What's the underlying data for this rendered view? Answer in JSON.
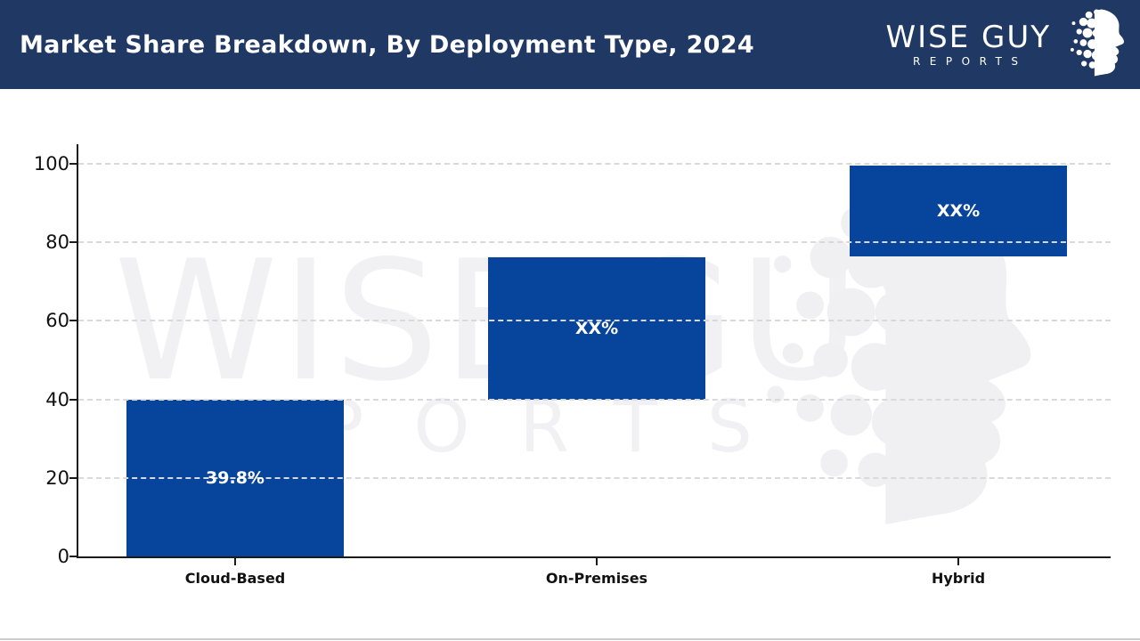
{
  "header": {
    "title": "Market Share Breakdown, By Deployment Type, 2024",
    "logo": {
      "line1": "WISE GUY",
      "line2": "REPORTS"
    }
  },
  "watermark": {
    "line1": "WISE GUY",
    "line2": "REPORTS"
  },
  "chart_data": {
    "type": "bar",
    "subtype": "floating-segment-waterfall",
    "title": "Market Share Breakdown, By Deployment Type, 2024",
    "categories": [
      "Cloud-Based",
      "On-Premises",
      "Hybrid"
    ],
    "segments": [
      {
        "category": "Cloud-Based",
        "start": 0,
        "end": 39.8,
        "label": "39.8%"
      },
      {
        "category": "On-Premises",
        "start": 40,
        "end": 76.3,
        "label": "XX%"
      },
      {
        "category": "Hybrid",
        "start": 76.5,
        "end": 99.6,
        "label": "XX%"
      }
    ],
    "xlabel": "",
    "ylabel": "",
    "ylim": [
      0,
      105
    ],
    "yticks": [
      0,
      20,
      40,
      60,
      80,
      100
    ],
    "grid": "dashed-horizontal",
    "legend": "none",
    "bar_color": "#07449b",
    "bar_label_color": "#ffffff"
  },
  "colors": {
    "header_bg": "#203864",
    "bar": "#07449b",
    "grid": "#d9d9d9",
    "axis": "#1a1a1a",
    "watermark": "#f1f1f4",
    "bottom_line": "#cccccc"
  }
}
